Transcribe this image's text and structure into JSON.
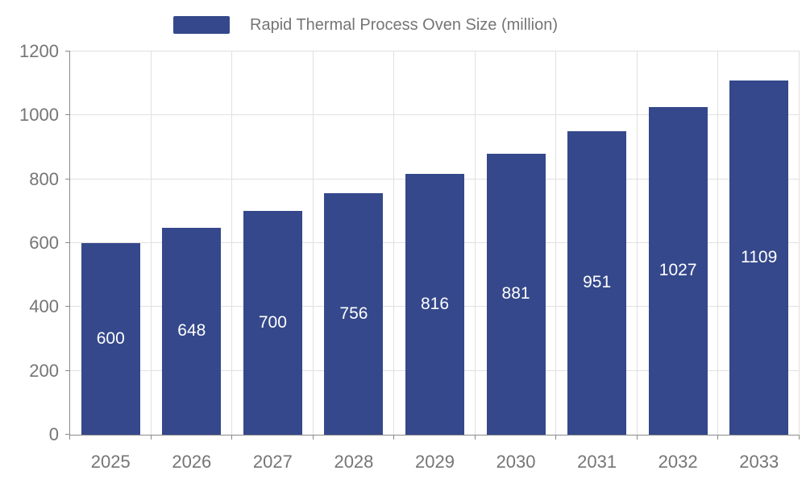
{
  "chart_data": {
    "type": "bar",
    "title": "Rapid Thermal Process Oven Size (million)",
    "legend": {
      "label": "Rapid Thermal Process Oven Size (million)",
      "position": "top"
    },
    "categories": [
      "2025",
      "2026",
      "2027",
      "2028",
      "2029",
      "2030",
      "2031",
      "2032",
      "2033"
    ],
    "values": [
      600,
      648,
      700,
      756,
      816,
      881,
      951,
      1027,
      1109
    ],
    "series": [
      {
        "name": "Rapid Thermal Process Oven Size (million)",
        "values": [
          600,
          648,
          700,
          756,
          816,
          881,
          951,
          1027,
          1109
        ]
      }
    ],
    "xlabel": "",
    "ylabel": "",
    "ylim": [
      0,
      1200
    ],
    "yticks": [
      0,
      200,
      400,
      600,
      800,
      1000,
      1200
    ],
    "grid": true,
    "bar_labels_position": "inside-center",
    "colors": {
      "bar": "#35488b",
      "bar_label": "#ffffff",
      "axis_text": "#757575",
      "legend_text": "#757575",
      "grid_line": "#e0e0e0",
      "axis_line": "#8a8a8a"
    }
  }
}
